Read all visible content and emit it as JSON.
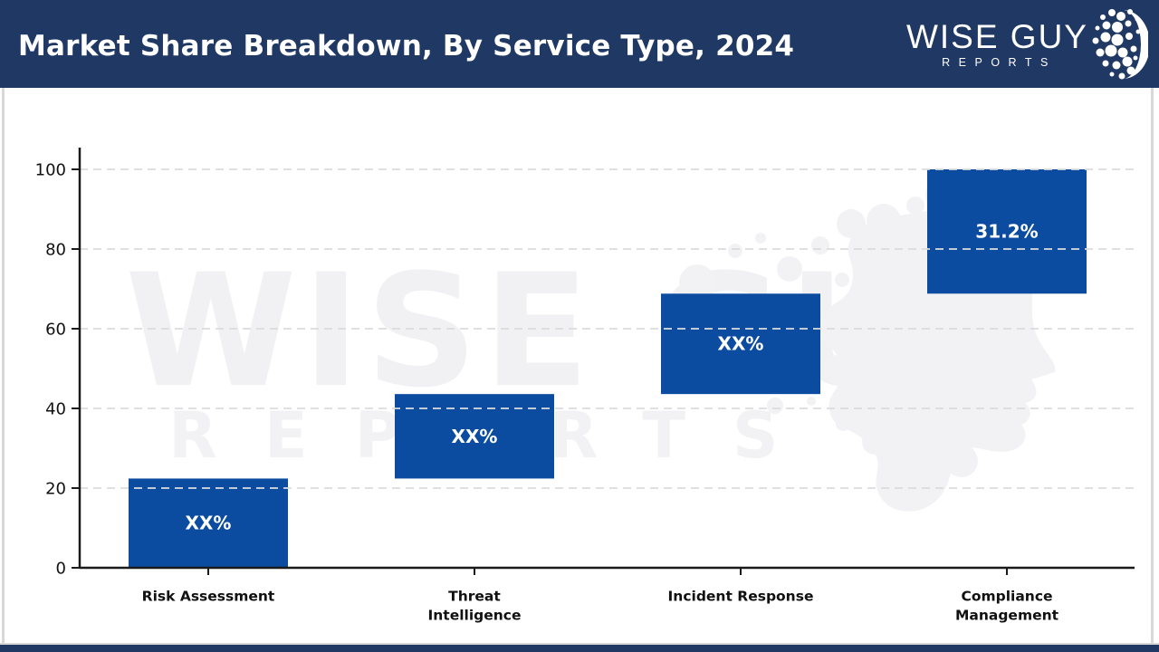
{
  "header": {
    "title": "Market Share Breakdown, By Service Type, 2024",
    "logo": {
      "name": "WISE GUY",
      "tagline": "REPORTS"
    }
  },
  "watermark": {
    "name": "WISE GUY",
    "tagline": "REPORTS"
  },
  "chart_data": {
    "type": "bar",
    "subtype": "floating-segment-waterfall",
    "title": "Market Share Breakdown, By Service Type, 2024",
    "categories": [
      "Risk Assessment",
      "Threat Intelligence",
      "Incident Response",
      "Compliance Management"
    ],
    "category_lines": [
      [
        "Risk Assessment"
      ],
      [
        "Threat",
        "Intelligence"
      ],
      [
        "Incident Response"
      ],
      [
        "Compliance",
        "Management"
      ]
    ],
    "bars": [
      {
        "category": "Risk Assessment",
        "from": 0,
        "to": 22.4,
        "label": "XX%"
      },
      {
        "category": "Threat Intelligence",
        "from": 22.4,
        "to": 43.6,
        "label": "XX%"
      },
      {
        "category": "Incident Response",
        "from": 43.6,
        "to": 68.8,
        "label": "XX%"
      },
      {
        "category": "Compliance Management",
        "from": 68.8,
        "to": 100,
        "label": "31.2%"
      }
    ],
    "xlabel": "",
    "ylabel": "",
    "ylim": [
      0,
      100
    ],
    "yticks": [
      0,
      20,
      40,
      60,
      80,
      100
    ],
    "grid": {
      "horizontal": true,
      "style": "dashed",
      "drawn_over_bars": true
    },
    "legend": "none",
    "colors": {
      "bar": "#0B4CA0",
      "bar_label": "#FFFFFF",
      "axis": "#1A1A1A",
      "tick_label": "#111111",
      "gridline": "#DCDCDC",
      "header_bg": "#1F3864",
      "watermark": "#F1F1F3"
    }
  }
}
